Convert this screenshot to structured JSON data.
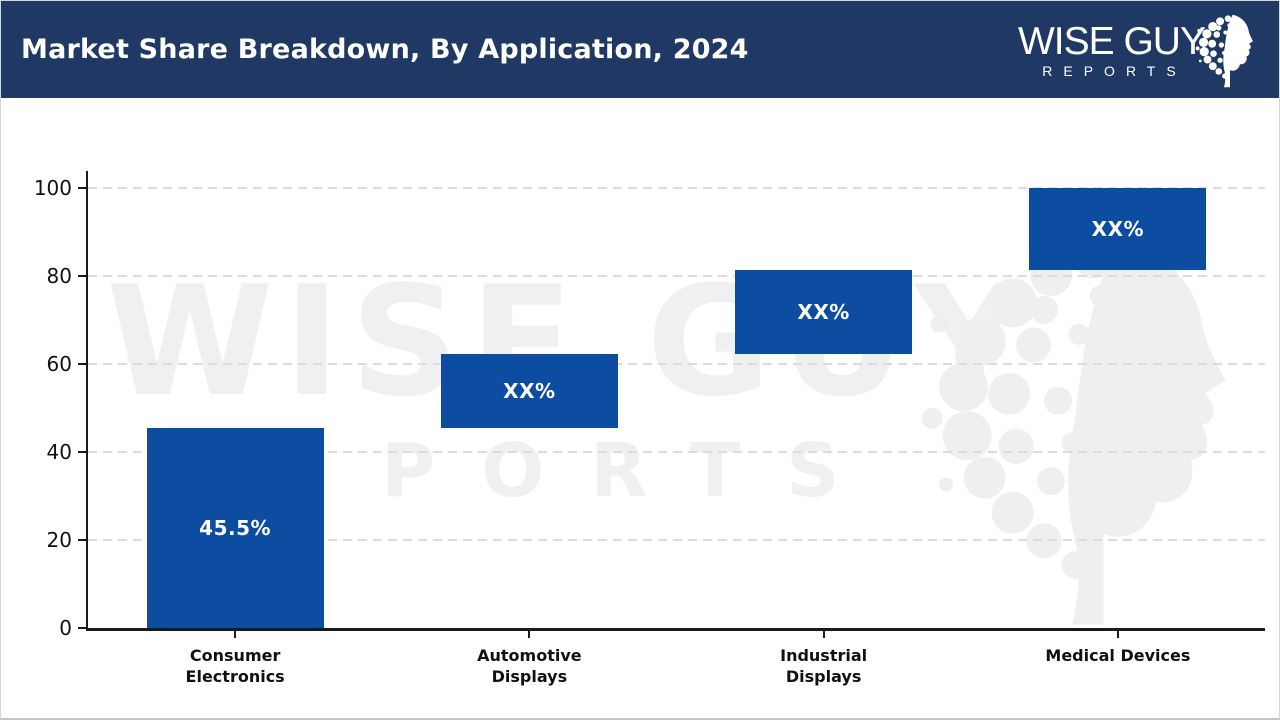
{
  "header": {
    "title": "Market Share Breakdown, By Application, 2024",
    "logo": {
      "name": "WISE GUY",
      "sub": "REPORTS"
    }
  },
  "watermark": {
    "line1": "WISE GUY",
    "line2": "PORTS"
  },
  "chart_data": {
    "type": "bar",
    "subtype": "waterfall",
    "title": "Market Share Breakdown, By Application, 2024",
    "categories": [
      [
        "Consumer",
        "Electronics"
      ],
      [
        "Automotive",
        "Displays"
      ],
      [
        "Industrial",
        "Displays"
      ],
      [
        "Medical Devices"
      ]
    ],
    "segments": [
      {
        "category": "Consumer Electronics",
        "start": 0,
        "end": 45.5,
        "label": "45.5%"
      },
      {
        "category": "Automotive Displays",
        "start": 45.5,
        "end": 62.3,
        "label": "XX%"
      },
      {
        "category": "Industrial Displays",
        "start": 62.3,
        "end": 81.3,
        "label": "XX%"
      },
      {
        "category": "Medical Devices",
        "start": 81.3,
        "end": 100,
        "label": "XX%"
      }
    ],
    "yticks": [
      0,
      20,
      40,
      60,
      80,
      100
    ],
    "ylim": [
      0,
      103.8
    ],
    "xlabel": "",
    "ylabel": "",
    "legend": "none",
    "grid": "horizontal-dashed",
    "bar_color": "#0c4da2",
    "label_color": "#ffffff"
  },
  "colors": {
    "header_bg": "#203864",
    "bar": "#0c4da2",
    "axis": "#1a1a1a",
    "grid": "#dcdcdc",
    "watermark": "#f0f0f3"
  }
}
